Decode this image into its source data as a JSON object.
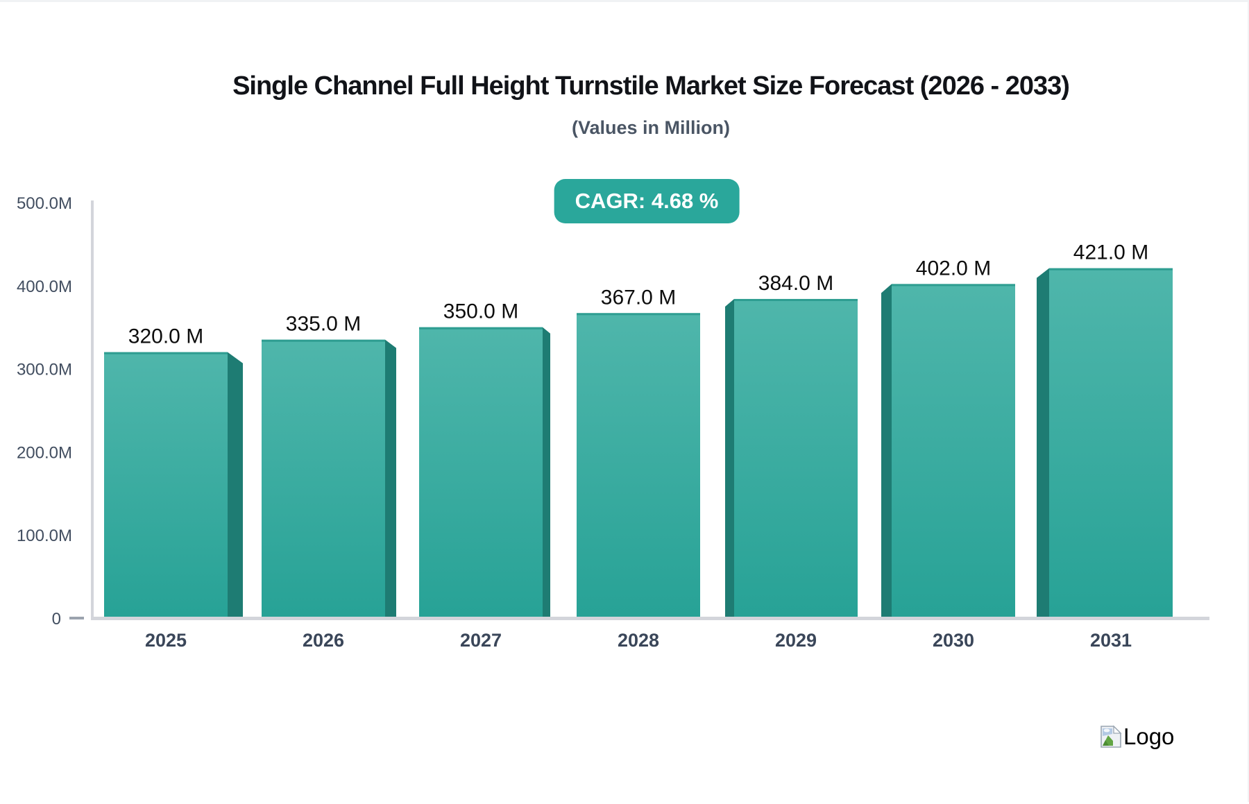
{
  "page": {
    "logo_text": "Logo",
    "colors": {
      "bar_gradient_top": "#4FB6AB",
      "bar_gradient_bottom": "#27A296",
      "bar_top_edge": "#2E9D91",
      "bar_side": "#1E7C73",
      "axis_line": "#D3D5DB",
      "y_tick_label": "#424E60",
      "x_tick_label": "#3A4659",
      "bar_value_label": "#0D0D0D",
      "badge_bg": "#2AA79B",
      "badge_text": "#FFFFFF",
      "title_text": "#111318",
      "subtitle_text": "#4A5564",
      "zero_dash": "#9BA3AE"
    }
  },
  "chart_data": {
    "type": "bar",
    "title": "Single Channel Full Height Turnstile Market Size Forecast (2026 - 2033)",
    "subtitle": "(Values in Million)",
    "cagr_label": "CAGR: 4.68 %",
    "categories": [
      "2025",
      "2026",
      "2027",
      "2028",
      "2029",
      "2030",
      "2031"
    ],
    "values": [
      320,
      335,
      350,
      367,
      384,
      402,
      421
    ],
    "value_labels": [
      "320.0 M",
      "335.0 M",
      "350.0 M",
      "367.0 M",
      "384.0 M",
      "402.0 M",
      "421.0 M"
    ],
    "yticks": {
      "labels": [
        "500.0M",
        "400.0M",
        "300.0M",
        "200.0M",
        "100.0M",
        "0"
      ],
      "values": [
        500,
        400,
        300,
        200,
        100,
        0
      ]
    },
    "ylim": [
      0,
      500
    ],
    "xlabel": "",
    "ylabel": "",
    "grid": false,
    "legend": false,
    "style": "3d-perspective-bars"
  }
}
